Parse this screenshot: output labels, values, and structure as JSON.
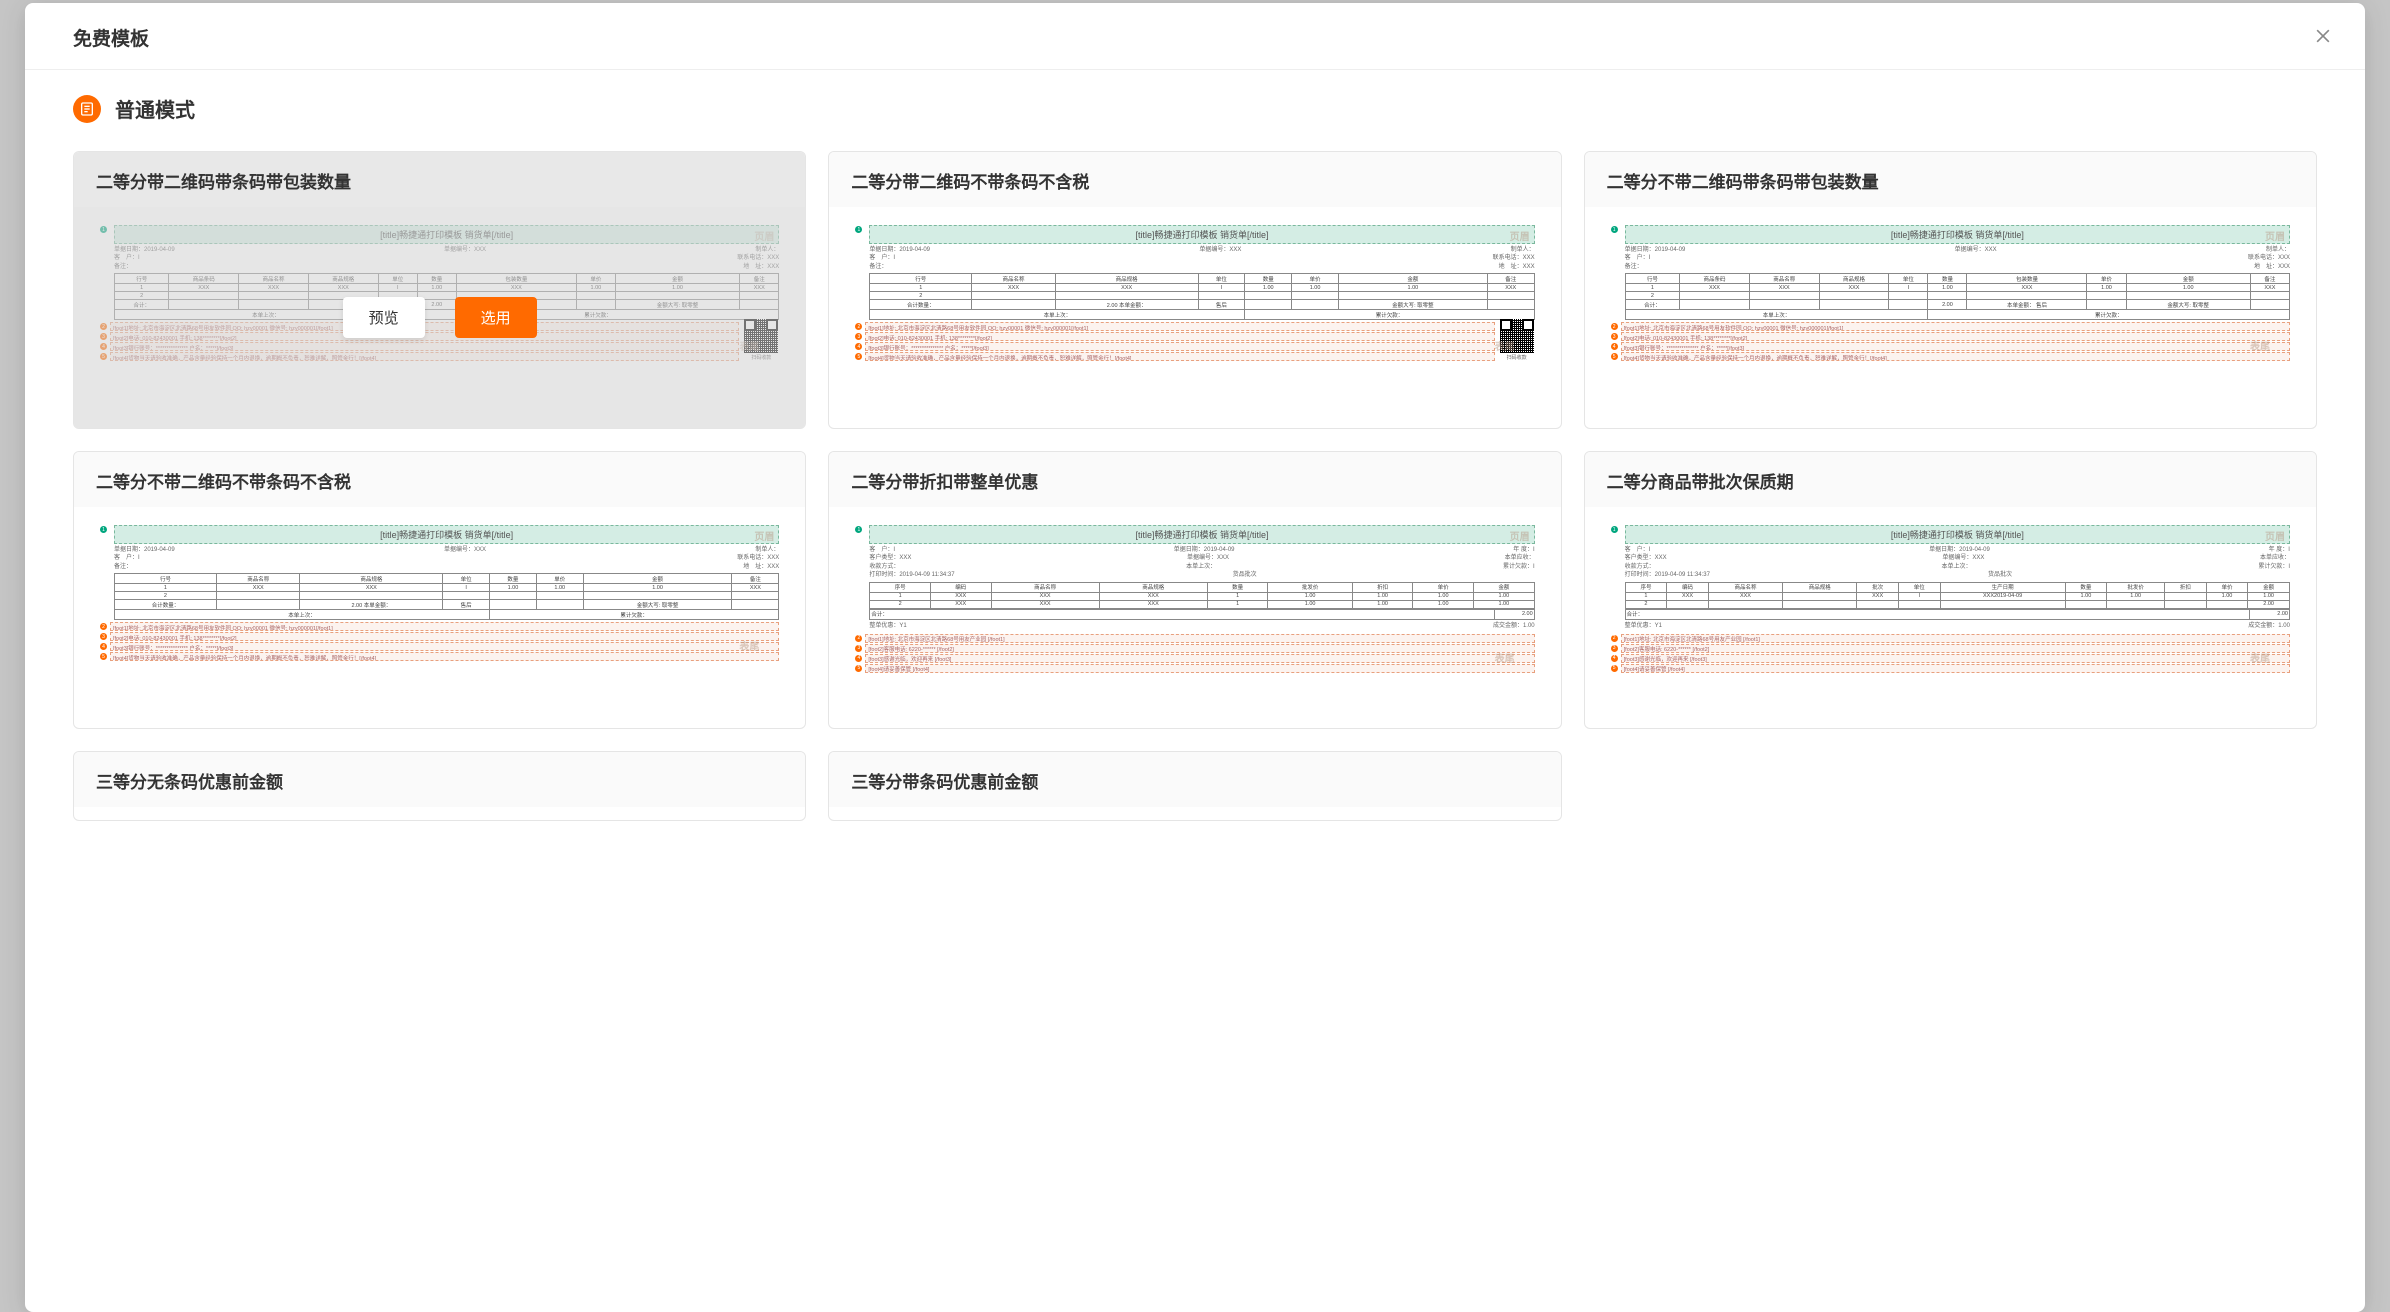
{
  "modal": {
    "title": "免费模板"
  },
  "section": {
    "title": "普通模式"
  },
  "buttons": {
    "preview": "预览",
    "select": "选用"
  },
  "templates": [
    {
      "title": "二等分带二维码带条码带包装数量",
      "has_qr": true,
      "variant": "packaging",
      "active": true
    },
    {
      "title": "二等分带二维码不带条码不含税",
      "has_qr": true,
      "variant": "notax",
      "active": false
    },
    {
      "title": "二等分不带二维码带条码带包装数量",
      "has_qr": false,
      "variant": "packaging",
      "active": false
    },
    {
      "title": "二等分不带二维码不带条码不含税",
      "has_qr": false,
      "variant": "notax",
      "active": false
    },
    {
      "title": "二等分带折扣带整单优惠",
      "has_qr": false,
      "variant": "discount",
      "active": false
    },
    {
      "title": "二等分商品带批次保质期",
      "has_qr": false,
      "variant": "batch",
      "active": false
    },
    {
      "title": "三等分无条码优惠前金额",
      "has_qr": false,
      "variant": "short",
      "active": false
    },
    {
      "title": "三等分带条码优惠前金额",
      "has_qr": false,
      "variant": "short",
      "active": false
    }
  ],
  "doc": {
    "title_text": "[title]畅捷通打印模板  销货单[/title]",
    "header_watermark": "页眉",
    "footer_watermark": "表尾",
    "qr_label": "扫码收款",
    "info": {
      "date_label": "单据日期：",
      "date_value": "2019-04-09",
      "docno_label": "单据编号：",
      "docno_value": "XXX",
      "maker_label": "制单人：",
      "customer_label": "客　户：",
      "customer_value": "I",
      "phone_label": "联系电话：",
      "phone_value": "XXX",
      "remark_label": "备注：",
      "remark_value": "",
      "addr_label": "地　址：",
      "addr_value": "XXX",
      "clienttype_label": "客户类型：",
      "clienttype_value": "XXX",
      "receipt_label": "收款方式：",
      "settle_label": "本单应收：",
      "printtime_label": "打印时间：",
      "printtime_value": "2019-04-09 11:34:37",
      "settlestore_label": "本单上次：",
      "year_label": "年 度：",
      "year_value": "I",
      "cumulate_label": "累计欠款：",
      "cumulate_value": "I"
    },
    "columns_packaging": [
      "行号",
      "商品条码",
      "商品名称",
      "商品规格",
      "单位",
      "数量",
      "包装数量",
      "单价",
      "金额",
      "备注"
    ],
    "columns_notax": [
      "行号",
      "商品名称",
      "商品规格",
      "单位",
      "数量",
      "单价",
      "金额",
      "备注"
    ],
    "columns_discount": [
      "序号",
      "编码",
      "商品名称",
      "商品规格",
      "数量",
      "批发价",
      "折扣",
      "单价",
      "金额"
    ],
    "columns_batch": [
      "序号",
      "编码",
      "商品名称",
      "商品规格",
      "批次",
      "单位",
      "生产日期",
      "数量",
      "批发价",
      "折扣",
      "单价",
      "金额"
    ],
    "rows_packaging": [
      [
        "1",
        "XXX",
        "XXX",
        "XXX",
        "I",
        "1.00",
        "XXX",
        "1.00",
        "1.00",
        "XXX"
      ],
      [
        "2",
        "",
        "",
        "",
        "",
        "",
        "",
        "",
        "",
        ""
      ]
    ],
    "rows_notax": [
      [
        "1",
        "XXX",
        "XXX",
        "I",
        "1.00",
        "1.00",
        "1.00",
        "XXX"
      ],
      [
        "2",
        "",
        "",
        "",
        "",
        "",
        "",
        ""
      ]
    ],
    "rows_discount": [
      [
        "1",
        "XXX",
        "XXX",
        "XXX",
        "1",
        "1.00",
        "1.00",
        "1.00",
        "1.00"
      ],
      [
        "2",
        "XXX",
        "XXX",
        "XXX",
        "1",
        "1.00",
        "1.00",
        "1.00",
        "1.00"
      ]
    ],
    "rows_batch": [
      [
        "1",
        "XXX",
        "XXX",
        "",
        "XXX",
        "I",
        "XXX2019-04-09",
        "1.00",
        "1.00",
        "",
        "1.00",
        "1.00"
      ],
      [
        "2",
        "",
        "",
        "",
        "",
        "",
        "",
        "",
        "",
        "",
        "",
        "2.00"
      ]
    ],
    "summary_packaging": [
      "合计：",
      "",
      "",
      "",
      "",
      "2.00",
      "本单金额：  售后",
      "",
      "金额大写: 取零整",
      ""
    ],
    "summary_notax": [
      "合计数量：",
      "",
      "2.00  本单金额：",
      "售后",
      "",
      "",
      "金额大写: 取零整",
      ""
    ],
    "summary_row_label1": "本单上次：",
    "summary_row_label2": "累计欠款：",
    "discount_footer_left": "整单优惠：Y1",
    "discount_footer_right": "成交金额：1.00",
    "batch_sum": "合计：",
    "footers": [
      "[foot1]地址: 北京市海淀区北清路68号用友软件园  QQ: hzy00001  微信号: hzy000001[/foot1]",
      "[foot2]电话: 010-82430001    手机: 138********[/foot2]",
      "[foot3]银行账号：***************  户名：*****[/foot3]",
      "[foot4]货物当天请验收准确，产品含量经验保持一个月内退换，逾期概不负责，恕难详解，照管金行！[/foot4]"
    ],
    "footers_discount": [
      "[foot1]地址: 北京市海淀区北清路68号用友产业园 [/foot1]",
      "[foot2]客服电话: 6220-******  [/foot2]",
      "[foot3]感谢光临，欢迎再来 [/foot3]",
      "[foot4]请妥善保管 [/foot4]"
    ]
  },
  "colors": {
    "primary": "#ff6a00",
    "header_bg": "#d4ede4",
    "header_border": "#7ab89d",
    "footer_bg": "rgba(232,160,126,0.12)",
    "footer_border": "#e8a07e",
    "card_border": "#e5e5e5"
  }
}
